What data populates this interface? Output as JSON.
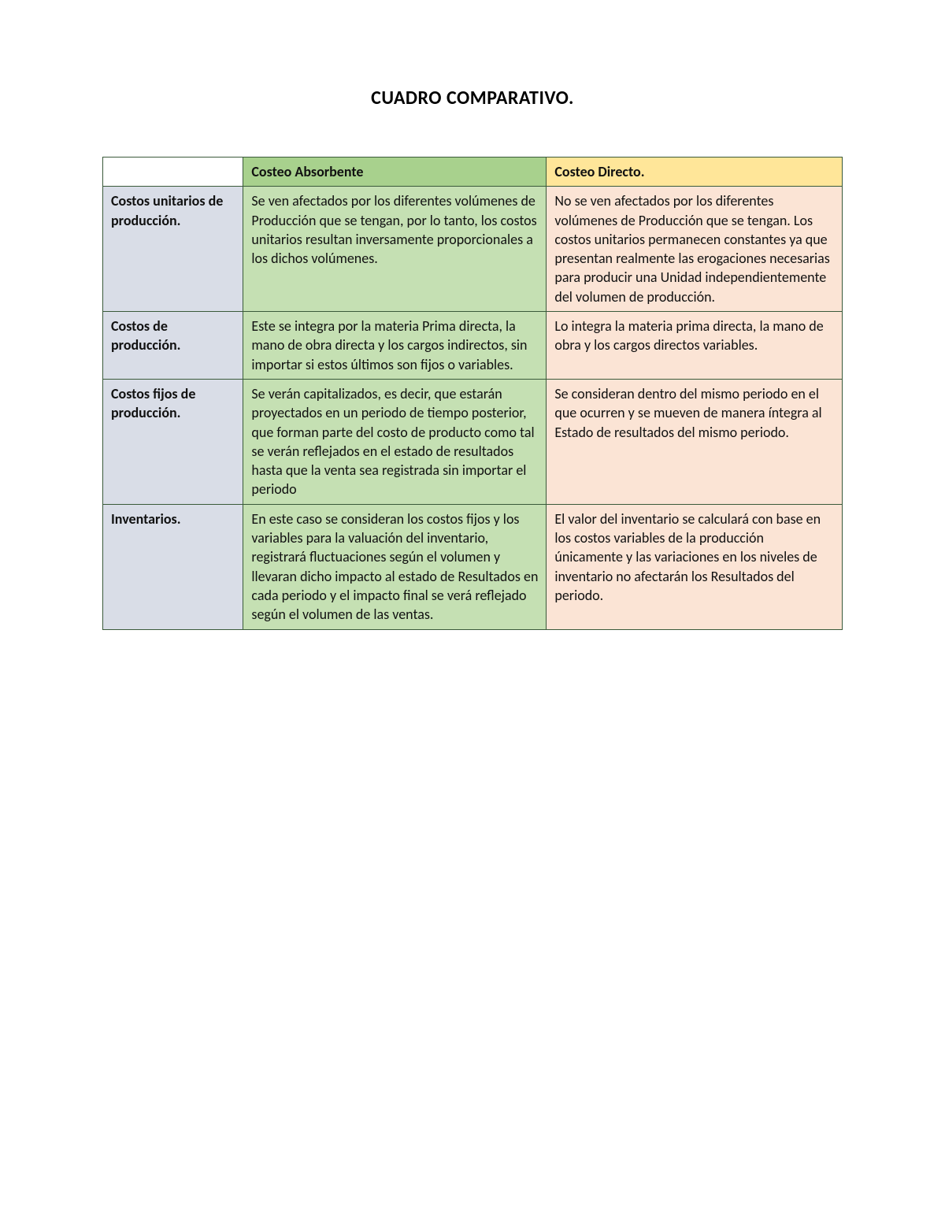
{
  "title": "CUADRO COMPARATIVO.",
  "table": {
    "columns": {
      "col1_header": "Costeo Absorbente",
      "col2_header": "Costeo Directo."
    },
    "row_header_bg": "#d9dde7",
    "col1_header_bg": "#a8d18d",
    "col2_header_bg": "#ffe699",
    "col1_cell_bg": "#c5e0b3",
    "col2_cell_bg": "#fbe4d5",
    "border_color": "#3a5a3a",
    "font_size_pt": 13,
    "rows": [
      {
        "label": "Costos unitarios de producción.",
        "col1": "Se ven afectados por los diferentes volúmenes de Producción que se tengan, por lo tanto, los costos unitarios resultan inversamente proporcionales a los dichos volúmenes.",
        "col2": "No se ven afectados por los diferentes volúmenes de Producción que se tengan. Los costos unitarios permanecen constantes ya que presentan realmente las erogaciones necesarias para producir una Unidad independientemente del volumen de producción."
      },
      {
        "label": "Costos de producción.",
        "col1": "Este se integra por la materia Prima directa, la mano de obra directa y los cargos indirectos, sin importar si estos últimos son fijos o variables.",
        "col2": "Lo integra la materia prima directa, la mano de obra y los cargos directos variables."
      },
      {
        "label": "Costos fijos de producción.",
        "col1": "Se verán capitalizados, es decir, que estarán proyectados en un periodo de tiempo posterior, que forman parte del costo de producto como tal se verán reflejados en el estado de resultados hasta que la venta sea registrada sin importar el periodo",
        "col2": "Se consideran dentro del mismo periodo en el que ocurren y se mueven de manera íntegra al Estado de resultados del mismo periodo."
      },
      {
        "label": "Inventarios.",
        "col1": "En este caso se consideran los costos fijos y los variables para la valuación del inventario, registrará fluctuaciones según el volumen y llevaran dicho impacto al estado de Resultados en cada periodo y el impacto final se verá reflejado según el volumen de las ventas.",
        "col2": "El valor del inventario se calculará con base en los costos variables de la producción únicamente y las variaciones en los niveles de inventario no afectarán los Resultados del periodo."
      }
    ]
  }
}
